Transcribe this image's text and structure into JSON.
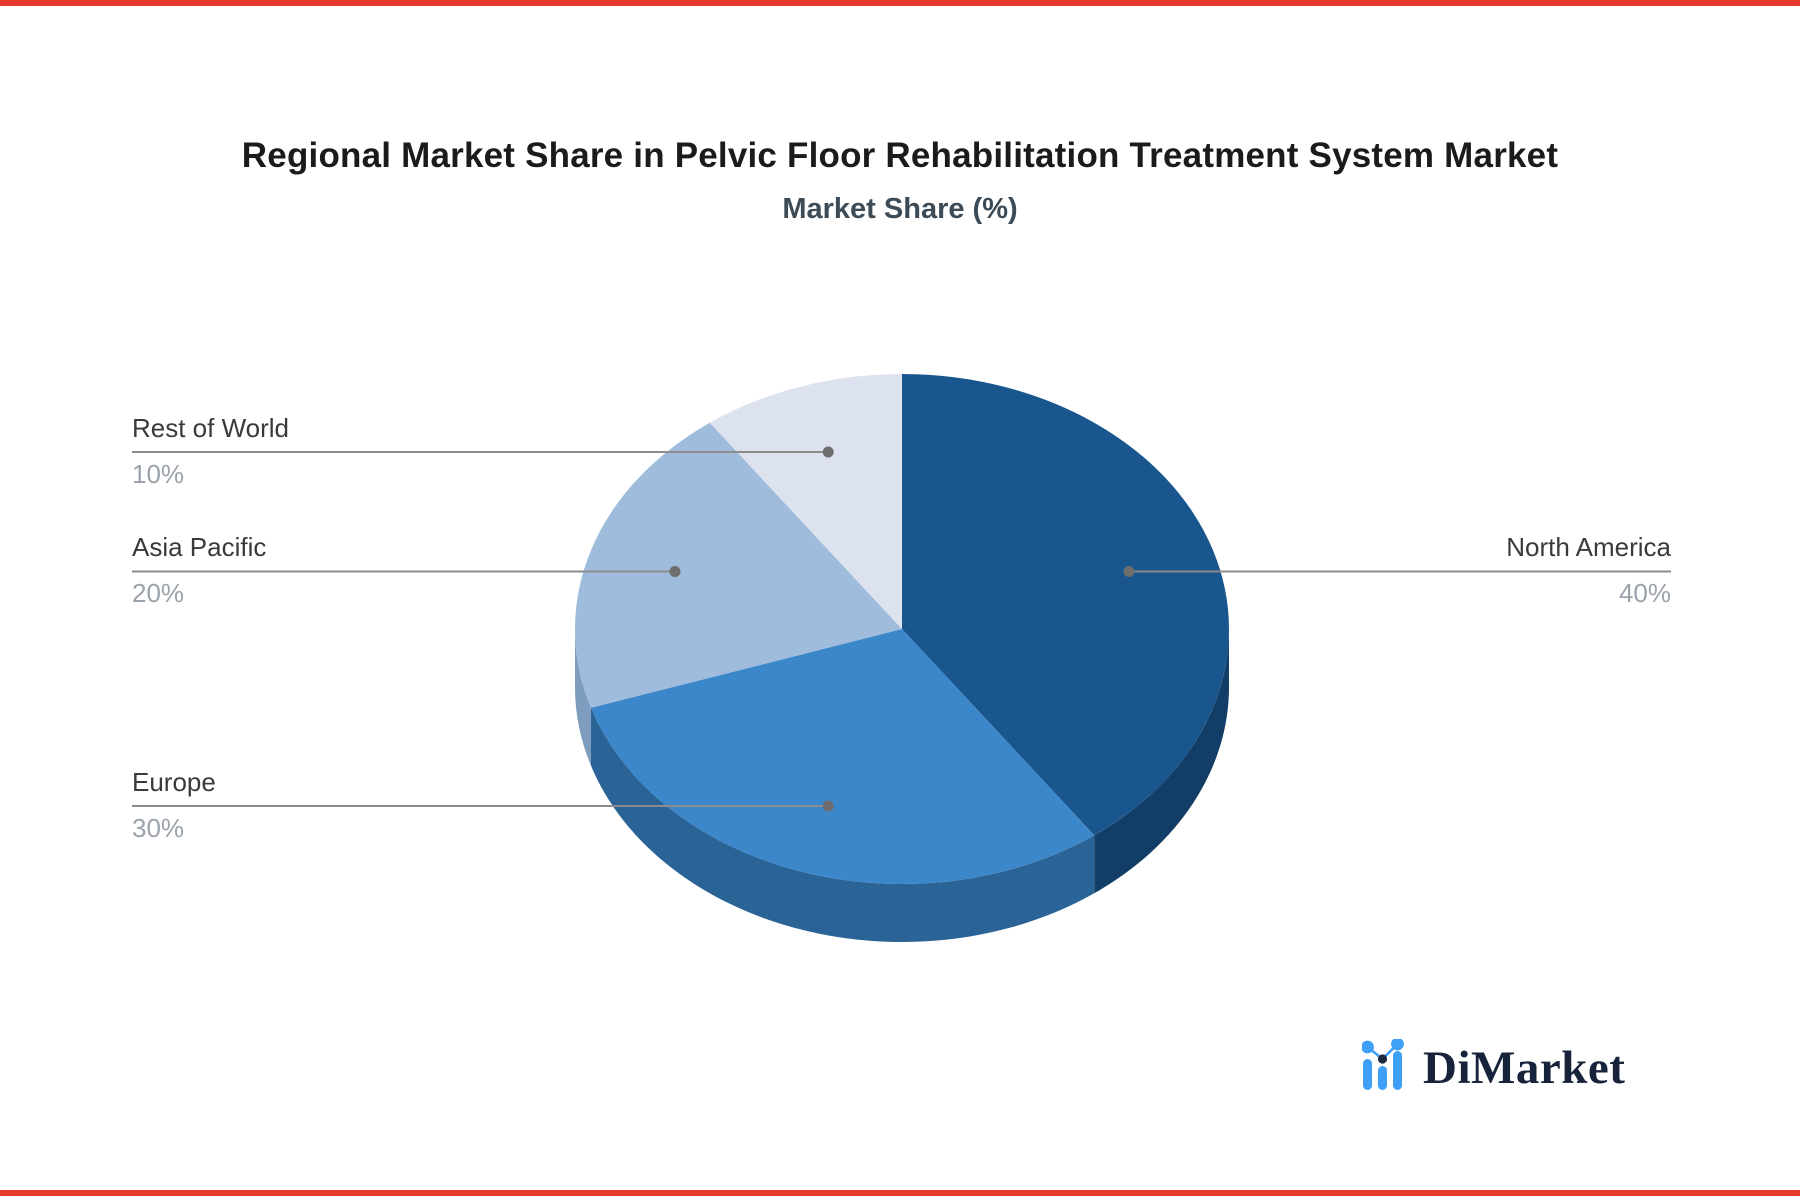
{
  "page": {
    "background": "#ffffff",
    "accent_strip_color": "#e5392b"
  },
  "chart_data": {
    "type": "pie",
    "title": "Regional Market Share in Pelvic Floor Rehabilitation Treatment System Market",
    "subtitle": "Market Share (%)",
    "categories": [
      "North America",
      "Europe",
      "Asia Pacific",
      "Rest of World"
    ],
    "values": [
      40,
      30,
      20,
      10
    ],
    "unit": "%",
    "value_labels": [
      "40%",
      "30%",
      "20%",
      "10%"
    ],
    "rotation": "clockwise-from-top",
    "effect": "3d",
    "legend_position": "callout-labels",
    "callout_sides": [
      "right",
      "left",
      "left",
      "left"
    ],
    "colors": {
      "top": [
        "#1a568e",
        "#3c87ca",
        "#9fbcdc",
        "#dde3ee"
      ],
      "side": [
        "#123d66",
        "#2a6396",
        "#7e9cbe",
        "#c2cfe0"
      ],
      "leader_line": "#8c8c8c",
      "anchor_dot": "#6d6d6d",
      "label_text": "#3a3a3a",
      "value_text": "#9ba2ab"
    }
  },
  "logo": {
    "text": "DiMarket",
    "icon": "bar-line-chart-icon",
    "text_color": "#16233b",
    "icon_color": "#3da0f6"
  }
}
